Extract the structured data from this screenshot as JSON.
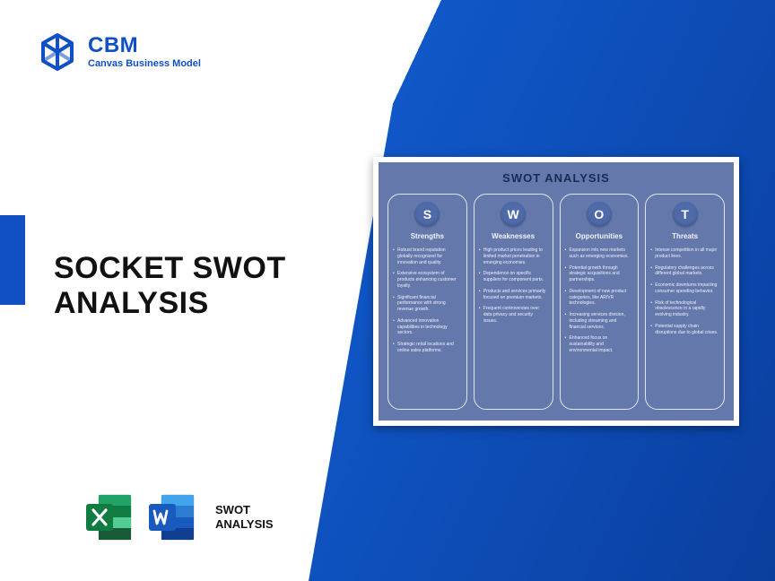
{
  "logo": {
    "title": "CBM",
    "subtitle": "Canvas Business Model",
    "color": "#1150c4"
  },
  "headline": {
    "line1": "SOCKET SWOT",
    "line2": "ANALYSIS"
  },
  "file_label": {
    "line1": "SWOT",
    "line2": "ANALYSIS"
  },
  "colors": {
    "brand_blue": "#1150c4",
    "band_gradient_start": "#1057c8",
    "band_gradient_end": "#0a3f9e",
    "panel_bg": "#6478ac",
    "badge_bg": "#4e6aa8",
    "excel_dark": "#107c41",
    "excel_light": "#21a366",
    "word_dark": "#185abd",
    "word_light": "#2b7cd3"
  },
  "swot_panel": {
    "title": "SWOT ANALYSIS",
    "columns": [
      {
        "letter": "S",
        "heading": "Strengths",
        "items": [
          "Robust brand reputation globally recognized for innovation and quality.",
          "Extensive ecosystem of products enhancing customer loyalty.",
          "Significant financial performance with strong revenue growth.",
          "Advanced innovation capabilities in technology sectors.",
          "Strategic retail locations and online sales platforms."
        ]
      },
      {
        "letter": "W",
        "heading": "Weaknesses",
        "items": [
          "High product prices leading to limited market penetration in emerging economies.",
          "Dependence on specific suppliers for component parts.",
          "Products and services primarily focused on premium markets.",
          "Frequent controversies over data privacy and security issues."
        ]
      },
      {
        "letter": "O",
        "heading": "Opportunities",
        "items": [
          "Expansion into new markets such as emerging economies.",
          "Potential growth through strategic acquisitions and partnerships.",
          "Development of new product categories, like AR/VR technologies.",
          "Increasing services division, including streaming and financial services.",
          "Enhanced focus on sustainability and environmental impact."
        ]
      },
      {
        "letter": "T",
        "heading": "Threats",
        "items": [
          "Intense competition in all major product lines.",
          "Regulatory challenges across different global markets.",
          "Economic downturns impacting consumer spending behavior.",
          "Risk of technological obsolescence in a rapidly evolving industry.",
          "Potential supply chain disruptions due to global crises."
        ]
      }
    ]
  }
}
